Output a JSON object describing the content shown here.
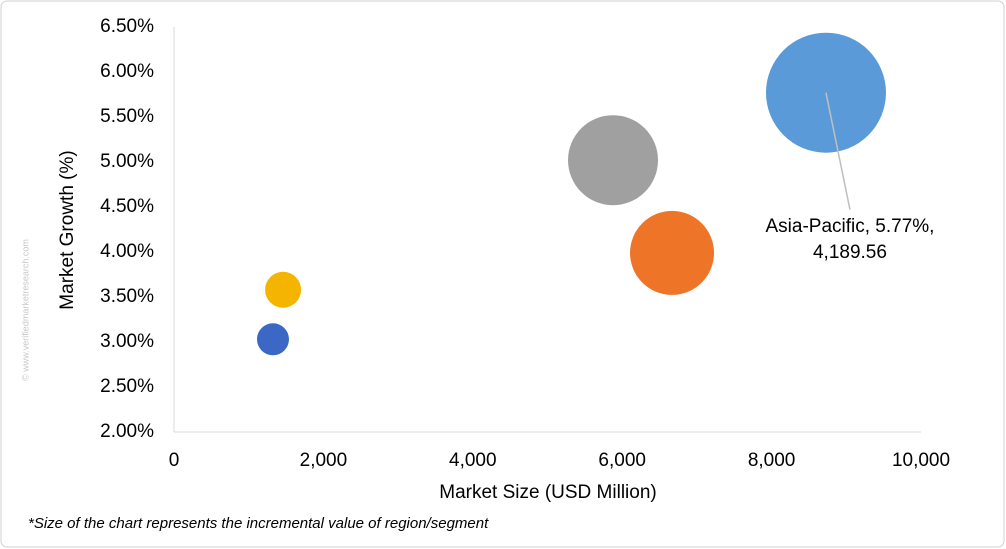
{
  "chart_data": {
    "type": "bubble",
    "x_label": "Market Size (USD Million)",
    "y_label": "Market Growth (%)",
    "footnote": "*Size of the chart represents the incremental value of region/segment",
    "watermark": "© www.verifiedmarketresearch.com",
    "x": [
      1325,
      1460,
      5877,
      6667,
      8728
    ],
    "values": [
      3.03,
      3.58,
      5.02,
      3.99,
      5.77
    ],
    "sizes": [
      298,
      377,
      2357,
      2053,
      4189.56
    ],
    "colors": [
      "#3a68c4",
      "#f4b400",
      "#a0a0a0",
      "#ee7428",
      "#5a9ad8"
    ],
    "value_labels": [
      null,
      null,
      null,
      null,
      "Asia-Pacific, 5.77%, 4,189.56"
    ],
    "xlim": [
      0,
      10000
    ],
    "xticks": [
      0,
      {
        "value": 2000,
        "label": "2,000"
      },
      {
        "value": 4000,
        "label": "4,000"
      },
      {
        "value": 6000,
        "label": "6,000"
      },
      {
        "value": 8000,
        "label": "8,000"
      },
      {
        "value": 10000,
        "label": "10,000"
      }
    ],
    "ylim": [
      2,
      6.5
    ],
    "yticks": [
      {
        "value": 2,
        "label": "2.00%"
      },
      {
        "value": 2.5,
        "label": "2.50%"
      },
      {
        "value": 3,
        "label": "3.00%"
      },
      {
        "value": 3.5,
        "label": "3.50%"
      },
      {
        "value": 4,
        "label": "4.00%"
      },
      {
        "value": 4.5,
        "label": "4.50%"
      },
      {
        "value": 5,
        "label": "5.00%"
      },
      {
        "value": 5.5,
        "label": "5.50%"
      },
      {
        "value": 6,
        "label": "6.00%"
      },
      {
        "value": 6.5,
        "label": "6.50%"
      }
    ]
  }
}
